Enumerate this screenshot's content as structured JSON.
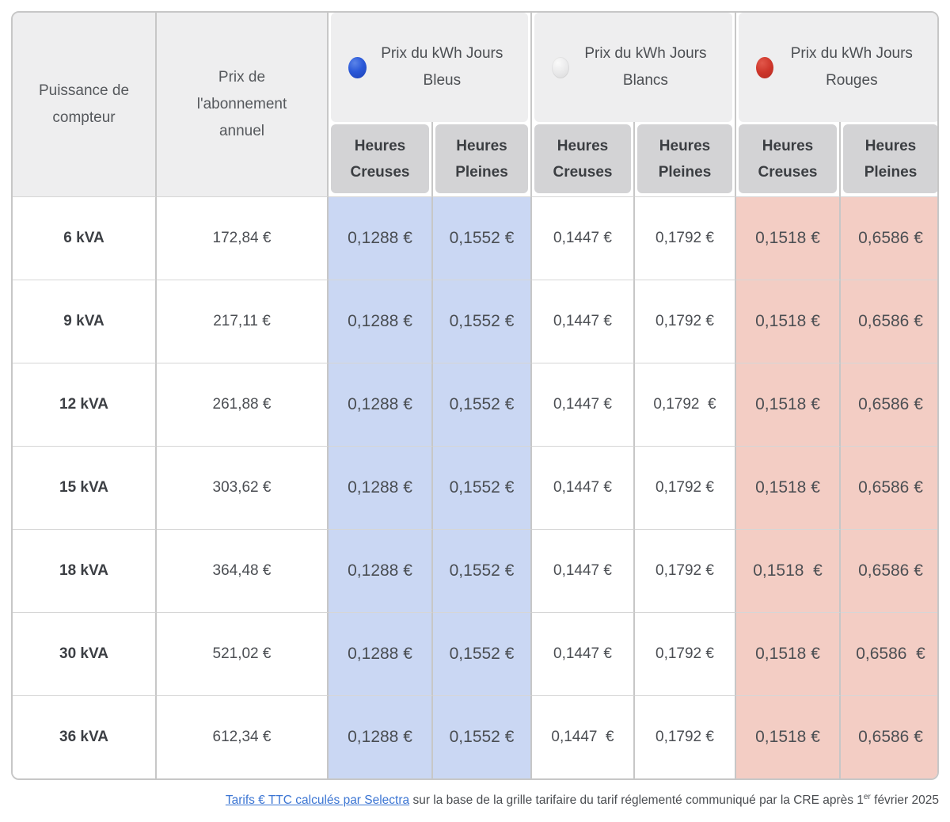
{
  "table": {
    "header": {
      "puissance": "Puissance de compteur",
      "abonnement": "Prix de l'abonnement annuel",
      "groups": [
        {
          "label": "Prix du kWh Jours Bleus",
          "dot_icon": "blue-day-dot-icon",
          "dot_color": "#2a58d8"
        },
        {
          "label": "Prix du kWh Jours Blancs",
          "dot_icon": "white-day-dot-icon",
          "dot_color": "#e8e8e9"
        },
        {
          "label": "Prix du kWh Jours Rouges",
          "dot_icon": "red-day-dot-icon",
          "dot_color": "#cd352a"
        }
      ],
      "sub_headers": [
        "Heures Creuses",
        "Heures Pleines",
        "Heures Creuses",
        "Heures Pleines",
        "Heures Creuses",
        "Heures Pleines"
      ]
    },
    "rows": [
      {
        "puissance": "6 kVA",
        "abonnement": "172,84 €",
        "values": [
          "0,1288 €",
          "0,1552 €",
          "0,1447 €",
          "0,1792 €",
          "0,1518 €",
          "0,6586 €"
        ]
      },
      {
        "puissance": "9 kVA",
        "abonnement": "217,11 €",
        "values": [
          "0,1288 €",
          "0,1552 €",
          "0,1447 €",
          "0,1792 €",
          "0,1518 €",
          "0,6586 €"
        ]
      },
      {
        "puissance": "12 kVA",
        "abonnement": "261,88 €",
        "values": [
          "0,1288 €",
          "0,1552 €",
          "0,1447 €",
          "0,1792  €",
          "0,1518 €",
          "0,6586 €"
        ]
      },
      {
        "puissance": "15 kVA",
        "abonnement": "303,62 €",
        "values": [
          "0,1288 €",
          "0,1552 €",
          "0,1447 €",
          "0,1792 €",
          "0,1518 €",
          "0,6586 €"
        ]
      },
      {
        "puissance": "18 kVA",
        "abonnement": "364,48 €",
        "values": [
          "0,1288 €",
          "0,1552 €",
          "0,1447 €",
          "0,1792 €",
          "0,1518  €",
          "0,6586 €"
        ]
      },
      {
        "puissance": "30 kVA",
        "abonnement": "521,02 €",
        "values": [
          "0,1288 €",
          "0,1552 €",
          "0,1447 €",
          "0,1792 €",
          "0,1518 €",
          "0,6586  €"
        ]
      },
      {
        "puissance": "36 kVA",
        "abonnement": "612,34 €",
        "values": [
          "0,1288 €",
          "0,1552 €",
          "0,1447  €",
          "0,1792 €",
          "0,1518 €",
          "0,6586 €"
        ]
      }
    ]
  },
  "footer": {
    "link_text": "Tarifs € TTC calculés par Selectra",
    "text_before_sup": " sur la base de la grille tarifaire du tarif réglementé communiqué par la CRE après 1",
    "sup": "er",
    "text_after_sup": " février 2025"
  },
  "colors": {
    "header_bg": "#eeeeef",
    "subheader_bg": "#d3d3d5",
    "blue_cell_bg": "#cad7f3",
    "red_cell_bg": "#f3cdc4",
    "white_cell_bg": "#ffffff",
    "border": "#c7c7c7",
    "link": "#3b75d3"
  },
  "chart_data": {
    "type": "table",
    "title": "Grille tarifaire Tempo",
    "columns": [
      "Puissance de compteur",
      "Prix de l'abonnement annuel",
      "Jours Bleus - Heures Creuses",
      "Jours Bleus - Heures Pleines",
      "Jours Blancs - Heures Creuses",
      "Jours Blancs - Heures Pleines",
      "Jours Rouges - Heures Creuses",
      "Jours Rouges - Heures Pleines"
    ],
    "rows": [
      [
        "6 kVA",
        "172,84 €",
        "0,1288 €",
        "0,1552 €",
        "0,1447 €",
        "0,1792 €",
        "0,1518 €",
        "0,6586 €"
      ],
      [
        "9 kVA",
        "217,11 €",
        "0,1288 €",
        "0,1552 €",
        "0,1447 €",
        "0,1792 €",
        "0,1518 €",
        "0,6586 €"
      ],
      [
        "12 kVA",
        "261,88 €",
        "0,1288 €",
        "0,1552 €",
        "0,1447 €",
        "0,1792 €",
        "0,1518 €",
        "0,6586 €"
      ],
      [
        "15 kVA",
        "303,62 €",
        "0,1288 €",
        "0,1552 €",
        "0,1447 €",
        "0,1792 €",
        "0,1518 €",
        "0,6586 €"
      ],
      [
        "18 kVA",
        "364,48 €",
        "0,1288 €",
        "0,1552 €",
        "0,1447 €",
        "0,1792 €",
        "0,1518 €",
        "0,6586 €"
      ],
      [
        "30 kVA",
        "521,02 €",
        "0,1288 €",
        "0,1552 €",
        "0,1447 €",
        "0,1792 €",
        "0,1518 €",
        "0,6586 €"
      ],
      [
        "36 kVA",
        "612,34 €",
        "0,1288 €",
        "0,1552 €",
        "0,1447 €",
        "0,1792 €",
        "0,1518 €",
        "0,6586 €"
      ]
    ]
  }
}
